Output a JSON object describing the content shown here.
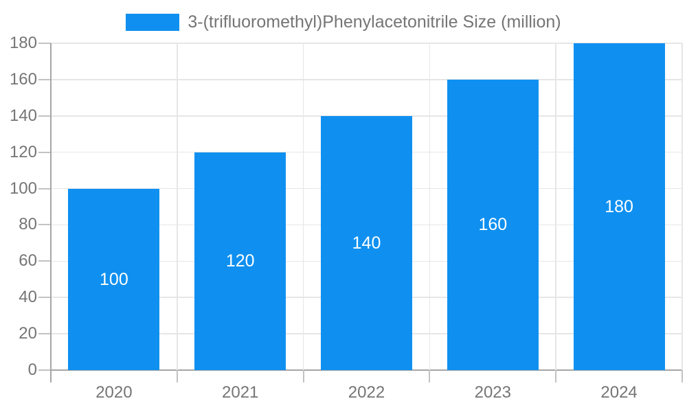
{
  "legend": {
    "label": "3-(trifluoromethyl)Phenylacetonitrile Size (million)"
  },
  "chart_data": {
    "type": "bar",
    "title": "3-(trifluoromethyl)Phenylacetonitrile Size (million)",
    "categories": [
      "2020",
      "2021",
      "2022",
      "2023",
      "2024"
    ],
    "series": [
      {
        "name": "3-(trifluoromethyl)Phenylacetonitrile Size (million)",
        "values": [
          100,
          120,
          140,
          160,
          180
        ]
      }
    ],
    "xlabel": "",
    "ylabel": "",
    "ylim": [
      0,
      180
    ],
    "yticks": [
      0,
      20,
      40,
      60,
      80,
      100,
      120,
      140,
      160,
      180
    ],
    "grid": true,
    "legend_position": "top-center",
    "value_labels": "inside-center",
    "colors": {
      "bar": "#0f90f0",
      "value_label": "#ffffff",
      "axis_text": "#757575",
      "legend_text": "#757575",
      "gridline": "#e6e6e6",
      "axis_line": "#a6a6a6",
      "tick_line": "#c2c2c2",
      "background": "#ffffff"
    }
  }
}
